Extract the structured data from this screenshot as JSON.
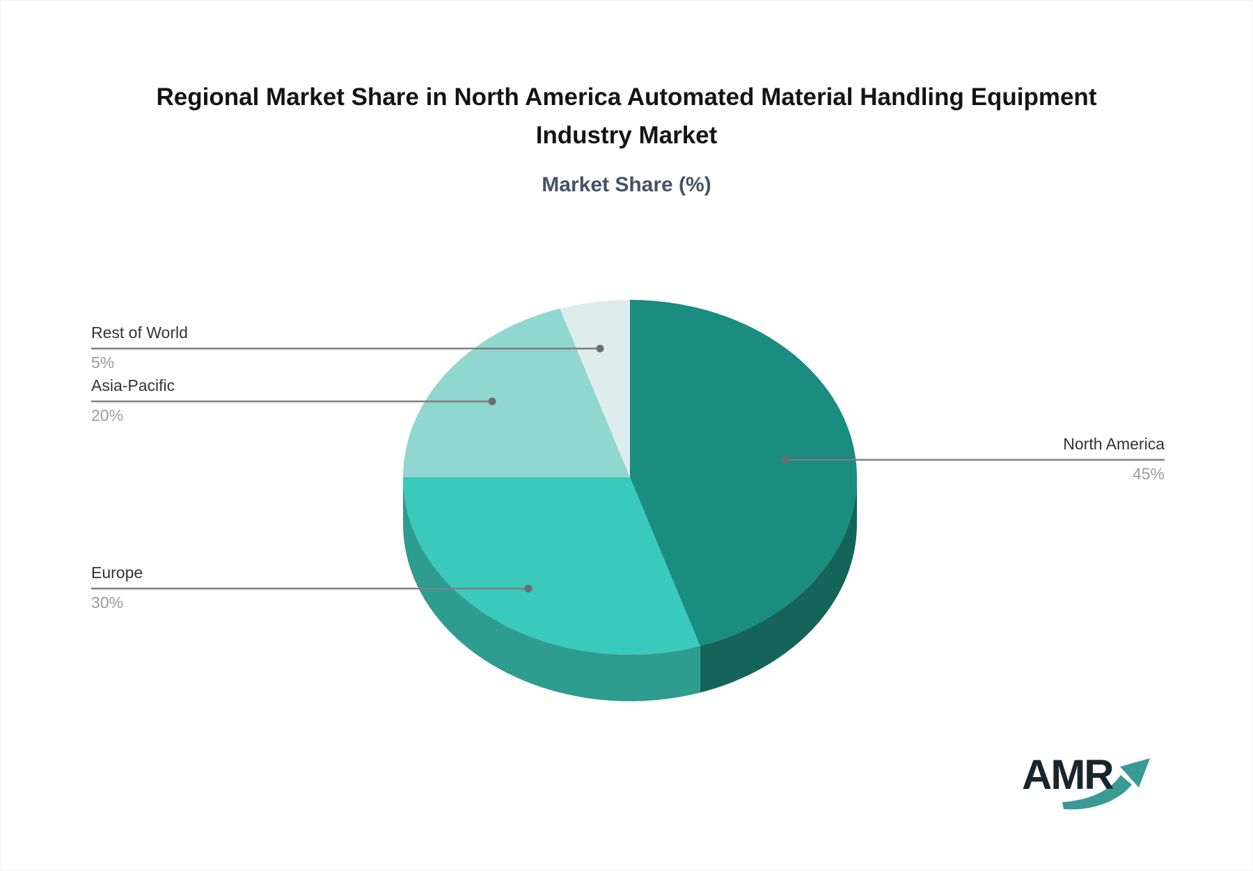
{
  "title": {
    "line1": "Regional Market Share in North America Automated Material Handling Equipment",
    "line2": "Industry Market"
  },
  "subtitle": "Market Share (%)",
  "logo_text": "AMR",
  "palette": {
    "leader_line": "#7f7f7f",
    "leader_dot": "#6d6d6d",
    "title_color": "#141414",
    "subtitle_color": "#455268",
    "label_color": "#333333",
    "value_color": "#9b9b9b",
    "logo_teal": "#3a9a95",
    "logo_dark": "#17262e"
  },
  "chart_data": {
    "type": "pie",
    "title": "Regional Market Share in North America Automated Material Handling Equipment Industry Market",
    "subtitle": "Market Share (%)",
    "categories": [
      "North America",
      "Europe",
      "Asia-Pacific",
      "Rest of World"
    ],
    "values": [
      45,
      30,
      20,
      5
    ],
    "unit": "percent",
    "style": "3d-pie",
    "start_angle_deg": 0,
    "direction": "clockwise",
    "slice_colors": [
      "#1a8c80",
      "#3acabb",
      "#90d7cf",
      "#deedeb"
    ],
    "side_colors": [
      "#156459",
      "#2e9c8f",
      "#7fc5bc",
      "#cfe3e0"
    ],
    "labels_position": "outside-callouts",
    "legend": false
  },
  "callouts": [
    {
      "label": "North America",
      "value_label": "45%"
    },
    {
      "label": "Europe",
      "value_label": "30%"
    },
    {
      "label": "Asia-Pacific",
      "value_label": "20%"
    },
    {
      "label": "Rest of World",
      "value_label": "5%"
    }
  ]
}
